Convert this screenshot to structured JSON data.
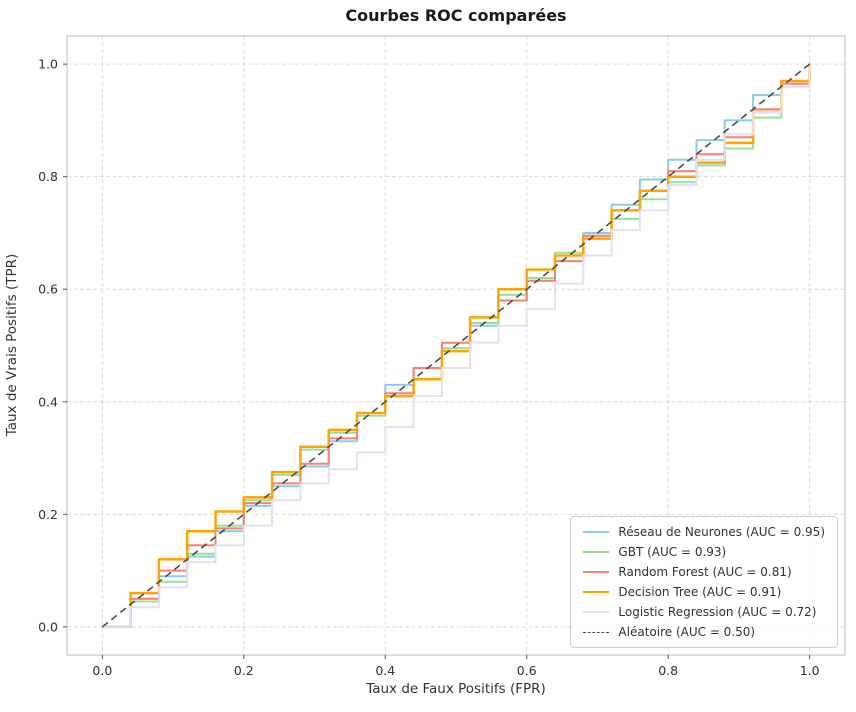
{
  "title": "Courbes ROC comparées",
  "chart_data": {
    "type": "line",
    "title": "Courbes ROC comparées",
    "xlabel": "Taux de Faux Positifs (FPR)",
    "ylabel": "Taux de Vrais Positifs (TPR)",
    "xlim": [
      -0.05,
      1.05
    ],
    "ylim": [
      -0.05,
      1.05
    ],
    "grid": true,
    "grid_style": "dashed",
    "legend_position": "lower right",
    "xticks": {
      "values": [
        0.0,
        0.2,
        0.4,
        0.6,
        0.8,
        1.0
      ],
      "labels": [
        "0.0",
        "0.2",
        "0.4",
        "0.6",
        "0.8",
        "1.0"
      ]
    },
    "yticks": {
      "values": [
        0.0,
        0.2,
        0.4,
        0.6,
        0.8,
        1.0
      ],
      "labels": [
        "0.0",
        "0.2",
        "0.4",
        "0.6",
        "0.8",
        "1.0"
      ]
    },
    "x": [
      0,
      0.04,
      0.08,
      0.12,
      0.16,
      0.2,
      0.24,
      0.28,
      0.32,
      0.36,
      0.4,
      0.44,
      0.48,
      0.52,
      0.56,
      0.6,
      0.64,
      0.68,
      0.72,
      0.76,
      0.8,
      0.84,
      0.88,
      0.92,
      0.96,
      1.0
    ],
    "series": [
      {
        "label": "Réseau de Neurones (AUC = 0.95)",
        "auc": 0.95,
        "color": "#87ceeb",
        "style": "solid",
        "width": 2,
        "offsets": [
          0,
          0.01,
          0.01,
          0.005,
          0.01,
          0.015,
          0.01,
          0.005,
          0.01,
          0.02,
          0.03,
          0.02,
          0.01,
          0.015,
          0.02,
          0.015,
          0.01,
          0.02,
          0.03,
          0.035,
          0.03,
          0.025,
          0.02,
          0.025,
          0.01,
          0
        ]
      },
      {
        "label": "GBT (AUC = 0.93)",
        "auc": 0.93,
        "color": "#98e098",
        "style": "solid",
        "width": 2,
        "offsets": [
          0,
          0.005,
          0.0,
          0.01,
          0.02,
          0.025,
          0.03,
          0.035,
          0.025,
          0.015,
          0.01,
          0.02,
          0.015,
          0.02,
          0.03,
          0.02,
          0.025,
          0.015,
          0.005,
          0.0,
          -0.01,
          -0.02,
          -0.03,
          -0.015,
          0.0,
          0
        ]
      },
      {
        "label": "Random Forest (AUC = 0.81)",
        "auc": 0.81,
        "color": "#fa8072",
        "style": "solid",
        "width": 2,
        "offsets": [
          0,
          0.01,
          0.02,
          0.025,
          0.015,
          0.02,
          0.015,
          0.01,
          0.015,
          0.02,
          0.015,
          0.02,
          0.025,
          0.03,
          0.02,
          0.015,
          0.01,
          0.015,
          0.02,
          0.015,
          0.01,
          0.0,
          -0.01,
          0.0,
          0.005,
          0
        ]
      },
      {
        "label": "Decision Tree (AUC = 0.91)",
        "auc": 0.91,
        "color": "#ffa500",
        "style": "solid",
        "width": 2.5,
        "offsets": [
          0,
          0.02,
          0.04,
          0.05,
          0.045,
          0.03,
          0.035,
          0.04,
          0.03,
          0.02,
          0.01,
          0.0,
          0.01,
          0.03,
          0.04,
          0.035,
          0.02,
          0.01,
          0.02,
          0.015,
          0.0,
          -0.015,
          -0.02,
          -0.005,
          0.01,
          0
        ]
      },
      {
        "label": "Logistic Regression (AUC = 0.72)",
        "auc": 0.72,
        "color": "#e2e0f5",
        "style": "solid",
        "width": 2,
        "offsets": [
          0,
          -0.005,
          -0.01,
          -0.005,
          -0.015,
          -0.02,
          -0.015,
          -0.025,
          -0.04,
          -0.05,
          -0.045,
          -0.03,
          -0.02,
          -0.015,
          -0.025,
          -0.035,
          -0.03,
          -0.02,
          -0.015,
          -0.02,
          -0.015,
          -0.01,
          -0.005,
          -0.005,
          0.0,
          0
        ]
      },
      {
        "label": "Aléatoire (AUC = 0.50)",
        "auc": 0.5,
        "color": "#4d4d4d",
        "style": "dashed",
        "width": 1.6,
        "diagonal": true,
        "offsets": null
      }
    ],
    "colors": {
      "grid": "#dcdcdc",
      "spine": "#c8c8c8",
      "tick": "#555555",
      "text": "#333333"
    }
  }
}
